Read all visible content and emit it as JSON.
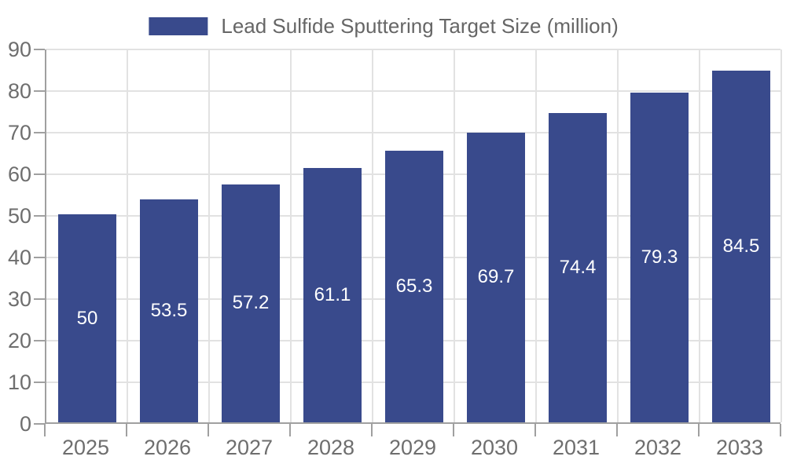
{
  "legend": {
    "label": "Lead Sulfide Sputtering Target Size (million)",
    "swatch_color": "#394A8C",
    "text_color": "#666666"
  },
  "chart_data": {
    "type": "bar",
    "title": "Lead Sulfide Sputtering Target Size (million)",
    "categories": [
      "2025",
      "2026",
      "2027",
      "2028",
      "2029",
      "2030",
      "2031",
      "2032",
      "2033"
    ],
    "values": [
      50,
      53.5,
      57.2,
      61.1,
      65.3,
      69.7,
      74.4,
      79.3,
      84.5
    ],
    "value_labels": [
      "50",
      "53.5",
      "57.2",
      "61.1",
      "65.3",
      "69.7",
      "74.4",
      "79.3",
      "84.5"
    ],
    "xlabel": "",
    "ylabel": "",
    "ylim": [
      0,
      90
    ],
    "ytick_step": 10,
    "grid": true,
    "legend_position": "top",
    "bar_color": "#394A8C",
    "value_label_color": "#ffffff",
    "axis_text_color": "#6E6E6E",
    "gridline_color": "#E2E2E2",
    "axis_line_color": "#A0A0A0"
  }
}
